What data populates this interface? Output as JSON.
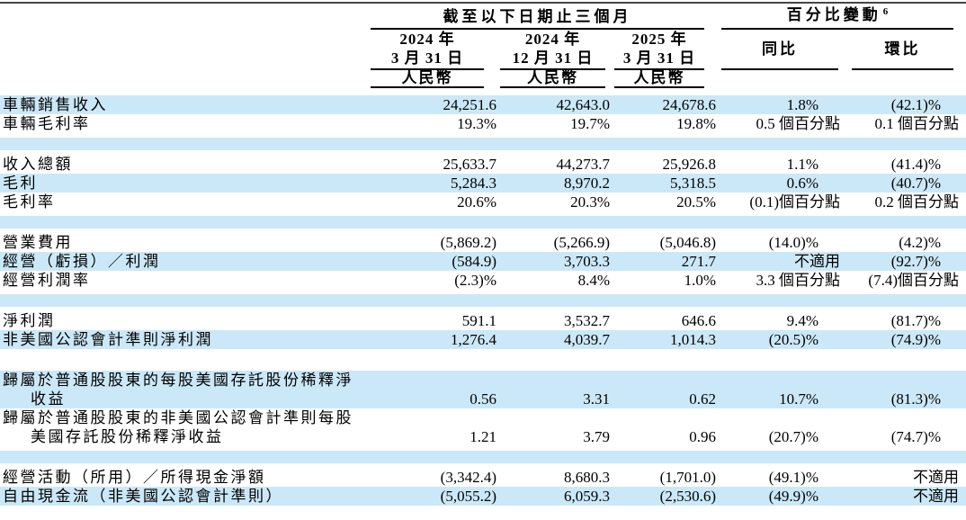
{
  "page": {
    "stripe_color": "#cbe8f8",
    "rule_color": "#000000",
    "top_rule_color": "#454545"
  },
  "table": {
    "period_group": {
      "label": "截至以下日期止三個月"
    },
    "change_group": {
      "label": "百分比變動",
      "footnote": "6"
    },
    "columns": [
      {
        "year": "2024 年",
        "date": "3 月 31 日",
        "currency": "人民幣"
      },
      {
        "year": "2024 年",
        "date": "12 月 31 日",
        "currency": "人民幣"
      },
      {
        "year": "2025 年",
        "date": "3 月 31 日",
        "currency": "人民幣"
      },
      {
        "label": "同比"
      },
      {
        "label": "環比"
      }
    ],
    "rows": [
      {
        "type": "data",
        "label": "車輛銷售收入",
        "values": [
          "24,251.6",
          "42,643.0",
          "24,678.6",
          "1.8%",
          "(42.1)%"
        ]
      },
      {
        "type": "data",
        "label": "車輛毛利率",
        "values": [
          "19.3%",
          "19.7%",
          "19.8%",
          "0.5 個百分點",
          "0.1 個百分點"
        ]
      },
      {
        "type": "separator"
      },
      {
        "type": "data",
        "label": "收入總額",
        "values": [
          "25,633.7",
          "44,273.7",
          "25,926.8",
          "1.1%",
          "(41.4)%"
        ]
      },
      {
        "type": "data",
        "label": "毛利",
        "values": [
          "5,284.3",
          "8,970.2",
          "5,318.5",
          "0.6%",
          "(40.7)%"
        ]
      },
      {
        "type": "data",
        "label": "毛利率",
        "values": [
          "20.6%",
          "20.3%",
          "20.5%",
          "(0.1)個百分點",
          "0.2 個百分點"
        ]
      },
      {
        "type": "separator"
      },
      {
        "type": "data",
        "label": "營業費用",
        "values": [
          "(5,869.2)",
          "(5,266.9)",
          "(5,046.8)",
          "(14.0)%",
          "(4.2)%"
        ]
      },
      {
        "type": "data",
        "label": "經營（虧損）／利潤",
        "values": [
          "(584.9)",
          "3,703.3",
          "271.7",
          "不適用",
          "(92.7)%"
        ]
      },
      {
        "type": "data",
        "label": "經營利潤率",
        "values": [
          "(2.3)%",
          "8.4%",
          "1.0%",
          "3.3 個百分點",
          "(7.4)個百分點"
        ]
      },
      {
        "type": "separator"
      },
      {
        "type": "data",
        "label": "淨利潤",
        "values": [
          "591.1",
          "3,532.7",
          "646.6",
          "9.4%",
          "(81.7)%"
        ]
      },
      {
        "type": "data",
        "label": "非美國公認會計準則淨利潤",
        "values": [
          "1,276.4",
          "4,039.7",
          "1,014.3",
          "(20.5)%",
          "(74.9)%"
        ]
      },
      {
        "type": "separator"
      },
      {
        "type": "data",
        "label": "歸屬於普通股股東的每股美國存託股份稀釋淨",
        "label2": "收益",
        "values": [
          "0.56",
          "3.31",
          "0.62",
          "10.7%",
          "(81.3)%"
        ]
      },
      {
        "type": "data",
        "label": "歸屬於普通股股東的非美國公認會計準則每股",
        "label2": "美國存託股份稀釋淨收益",
        "values": [
          "1.21",
          "3.79",
          "0.96",
          "(20.7)%",
          "(74.7)%"
        ]
      },
      {
        "type": "separator"
      },
      {
        "type": "data",
        "label": "經營活動（所用）／所得現金淨額",
        "values": [
          "(3,342.4)",
          "8,680.3",
          "(1,701.0)",
          "(49.1)%",
          "不適用"
        ]
      },
      {
        "type": "data",
        "label": "自由現金流（非美國公認會計準則）",
        "values": [
          "(5,055.2)",
          "6,059.3",
          "(2,530.6)",
          "(49.9)%",
          "不適用"
        ]
      }
    ]
  }
}
